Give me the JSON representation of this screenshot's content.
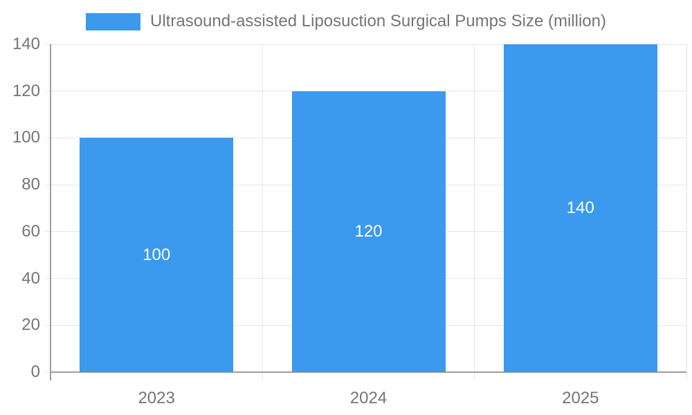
{
  "chart_data": {
    "type": "bar",
    "title": "Ultrasound-assisted Liposuction Surgical Pumps Size (million)",
    "categories": [
      "2023",
      "2024",
      "2025"
    ],
    "values": [
      100,
      120,
      140
    ],
    "data_labels": [
      "100",
      "120",
      "140"
    ],
    "yticks": [
      0,
      20,
      40,
      60,
      80,
      100,
      120,
      140
    ],
    "ylim": [
      0,
      140
    ],
    "xlabel": "",
    "ylabel": "",
    "grid": true,
    "legend_position": "top",
    "colors": {
      "bar": "#3B99EE",
      "bar_value_text": "#ffffff",
      "axis_text": "#757575",
      "gridline": "#e6e6e6",
      "axis_line": "#9e9e9e",
      "background": "#ffffff"
    }
  }
}
